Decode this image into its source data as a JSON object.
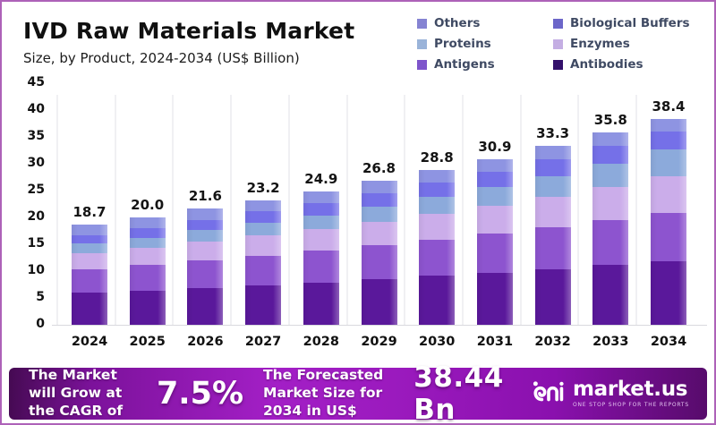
{
  "header": {
    "title": "IVD Raw Materials Market",
    "subtitle": "Size, by Product, 2024-2034 (US$ Billion)"
  },
  "legend": {
    "position": "top-right",
    "items": [
      {
        "label": "Others",
        "color": "#8583d2"
      },
      {
        "label": "Biological Buffers",
        "color": "#6c66c9"
      },
      {
        "label": "Proteins",
        "color": "#9ab3d9"
      },
      {
        "label": "Enzymes",
        "color": "#c4aee3"
      },
      {
        "label": "Antigens",
        "color": "#7e55cb"
      },
      {
        "label": "Antibodies",
        "color": "#33106b"
      }
    ]
  },
  "chart_data": {
    "type": "bar",
    "stacked": true,
    "title": "IVD Raw Materials Market",
    "subtitle": "Size, by Product, 2024-2034 (US$ Billion)",
    "categories": [
      "2024",
      "2025",
      "2026",
      "2027",
      "2028",
      "2029",
      "2030",
      "2031",
      "2032",
      "2033",
      "2034"
    ],
    "total_labels": [
      "18.7",
      "20.0",
      "21.6",
      "23.2",
      "24.9",
      "26.8",
      "28.8",
      "30.9",
      "33.3",
      "35.8",
      "38.4"
    ],
    "series": [
      {
        "name": "Antibodies",
        "color": "#5a189b",
        "values": [
          6.0,
          6.4,
          6.9,
          7.4,
          7.9,
          8.5,
          9.1,
          9.7,
          10.4,
          11.1,
          11.8
        ]
      },
      {
        "name": "Antigens",
        "color": "#8d54cf",
        "values": [
          4.4,
          4.7,
          5.1,
          5.5,
          5.9,
          6.3,
          6.8,
          7.3,
          7.8,
          8.4,
          9.1
        ]
      },
      {
        "name": "Enzymes",
        "color": "#cbadea",
        "values": [
          3.0,
          3.2,
          3.5,
          3.8,
          4.1,
          4.4,
          4.8,
          5.2,
          5.6,
          6.1,
          6.8
        ]
      },
      {
        "name": "Proteins",
        "color": "#8caadb",
        "values": [
          1.7,
          1.9,
          2.1,
          2.3,
          2.5,
          2.8,
          3.1,
          3.5,
          3.9,
          4.4,
          5.0
        ]
      },
      {
        "name": "Biological Buffers",
        "color": "#7570e8",
        "values": [
          1.6,
          1.8,
          1.9,
          2.1,
          2.3,
          2.5,
          2.7,
          2.8,
          3.1,
          3.3,
          3.3
        ]
      },
      {
        "name": "Others",
        "color": "#8e94e2",
        "values": [
          2.0,
          2.0,
          2.1,
          2.1,
          2.2,
          2.3,
          2.3,
          2.4,
          2.5,
          2.5,
          2.4
        ]
      }
    ],
    "stack_order": "bottom-to-top",
    "xlabel": "",
    "ylabel": "US$ Billion",
    "ylim": [
      0,
      45
    ],
    "yticks": [
      0,
      5,
      10,
      15,
      20,
      25,
      30,
      35,
      40,
      45
    ],
    "grid": false,
    "legend_position": "top-right",
    "value_labels": "totals shown above each bar"
  },
  "banner": {
    "cagr_label": "The Market will Grow at the CAGR of",
    "cagr_value": "7.5%",
    "forecast_label": "The Forecasted Market Size for 2034 in US$",
    "forecast_value": "38.44 Bn",
    "logo_text": "market.us",
    "logo_tagline": "ONE STOP SHOP FOR THE REPORTS",
    "background_left": "#450a52",
    "background_center": "#a31fc6",
    "background_right": "#570b6b",
    "text_color": "#ffffff"
  },
  "page": {
    "border_color": "#ad62b8",
    "background": "#ffffff"
  }
}
